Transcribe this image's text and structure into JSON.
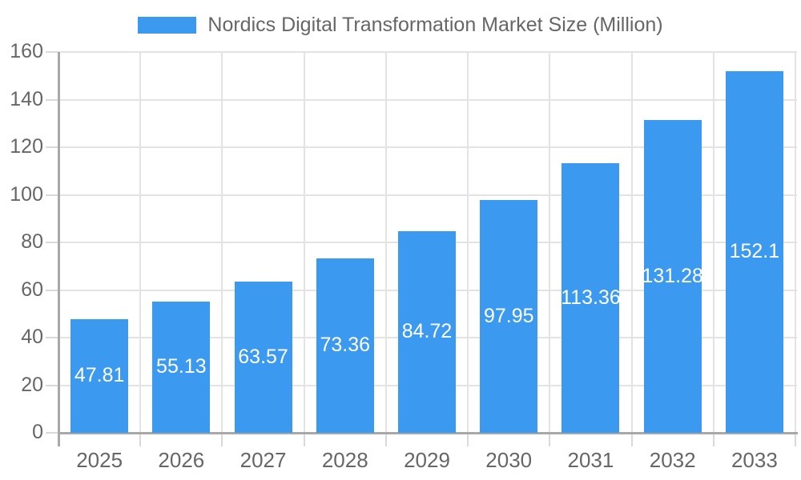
{
  "chart_data": {
    "type": "bar",
    "title": "Nordics Digital Transformation Market Size (Million)",
    "legend": [
      "Nordics Digital Transformation Market Size (Million)"
    ],
    "legend_position": "top",
    "categories": [
      "2025",
      "2026",
      "2027",
      "2028",
      "2029",
      "2030",
      "2031",
      "2032",
      "2033"
    ],
    "values": [
      47.81,
      55.13,
      63.57,
      73.36,
      84.72,
      97.95,
      113.36,
      131.28,
      152.1
    ],
    "data_labels": [
      "47.81",
      "55.13",
      "63.57",
      "73.36",
      "84.72",
      "97.95",
      "113.36",
      "131.28",
      "152.1"
    ],
    "y_tick_labels": [
      "0",
      "20",
      "40",
      "60",
      "80",
      "100",
      "120",
      "140",
      "160"
    ],
    "xlabel": "",
    "ylabel": "",
    "ylim": [
      0,
      160
    ],
    "ytick_interval": 20,
    "grid": true,
    "colors": {
      "bar": "#3B99F0",
      "bar_value_label": "#FFFFFF",
      "axis_label": "#666666",
      "gridline": "#E3E3E3",
      "tick": "#D9D9D9",
      "axis_line": "#A8A8A8",
      "background": "#FFFFFF"
    }
  }
}
